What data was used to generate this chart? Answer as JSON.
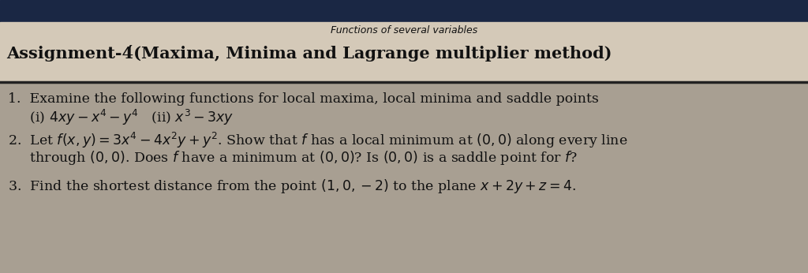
{
  "title": "Functions of several variables",
  "bg_top_bar": "#1a2744",
  "bg_header": "#d4c9b8",
  "bg_body": "#a89f92",
  "text_color": "#111111",
  "line_color": "#222222",
  "title_fontsize": 9,
  "subtitle_fontsize": 15,
  "body_fontsize": 12.5,
  "subtitle_text": "Assignment-4́(Maxima, Minima and Lagrange multiplier method)",
  "line1": "1.  Examine the following functions for local maxima, local minima and saddle points",
  "line2": "     (i) $4xy - x^4 - y^4$   (ii) $x^3 - 3xy$",
  "line3": "2.  Let $f(x, y) = 3x^4 - 4x^2y + y^2$. Show that $f$ has a local minimum at $(0, 0)$ along every line",
  "line4": "     through $(0, 0)$. Does $f$ have a minimum at $(0, 0)$? Is $(0, 0)$ is a saddle point for $f$?",
  "line5": "3.  Find the shortest distance from the point $(1, 0, -2)$ to the plane $x + 2y + z = 4$."
}
